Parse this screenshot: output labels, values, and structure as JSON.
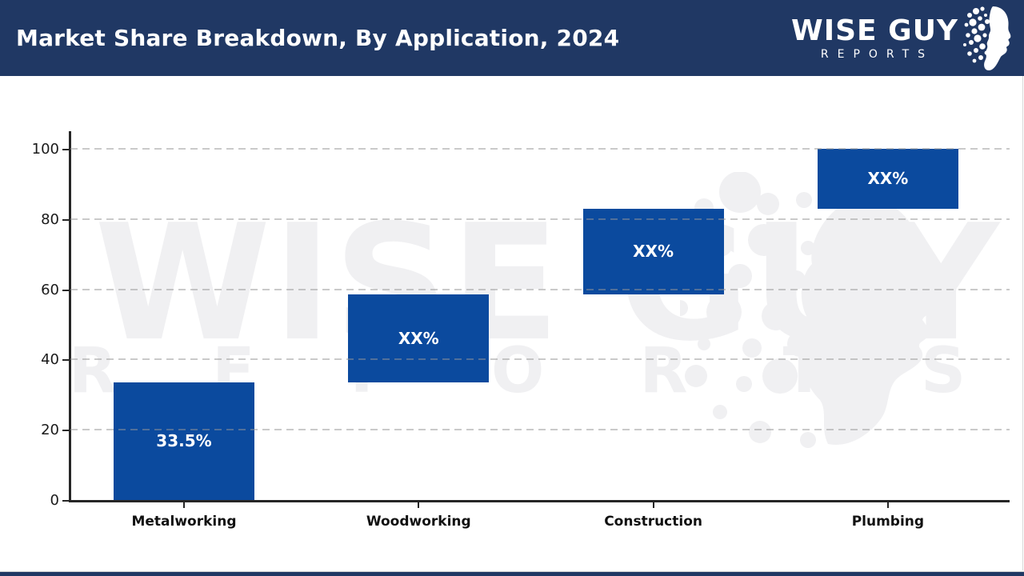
{
  "header": {
    "title": "Market Share Breakdown, By Application, 2024",
    "logo": {
      "line1": "WISE GUY",
      "line2": "REPORTS"
    }
  },
  "watermark": {
    "line1": "WISE GUY",
    "line2": "R E P O R T S"
  },
  "colors": {
    "header_bg": "#203864",
    "footer_bg": "#203864",
    "bar": "#0b4a9e",
    "axis": "#262626",
    "grid_dash": "#b4b4b4",
    "watermark": "#f0f0f2",
    "title_text": "#ffffff",
    "bar_label_text": "#ffffff"
  },
  "chart_data": {
    "type": "bar",
    "subtype": "waterfall",
    "title": "Market Share Breakdown, By Application, 2024",
    "categories": [
      "Metalworking",
      "Woodworking",
      "Construction",
      "Plumbing"
    ],
    "segments": [
      {
        "category": "Metalworking",
        "start": 0,
        "end": 33.5,
        "label": "33.5%"
      },
      {
        "category": "Woodworking",
        "start": 33.5,
        "end": 58.5,
        "label": "XX%"
      },
      {
        "category": "Construction",
        "start": 58.5,
        "end": 83,
        "label": "XX%"
      },
      {
        "category": "Plumbing",
        "start": 83,
        "end": 100,
        "label": "XX%"
      }
    ],
    "y_ticks": [
      0,
      20,
      40,
      60,
      80,
      100
    ],
    "ylim": [
      0,
      105
    ],
    "xlabel": "",
    "ylabel": "",
    "legend": "none",
    "grid": "horizontal-dashed"
  }
}
